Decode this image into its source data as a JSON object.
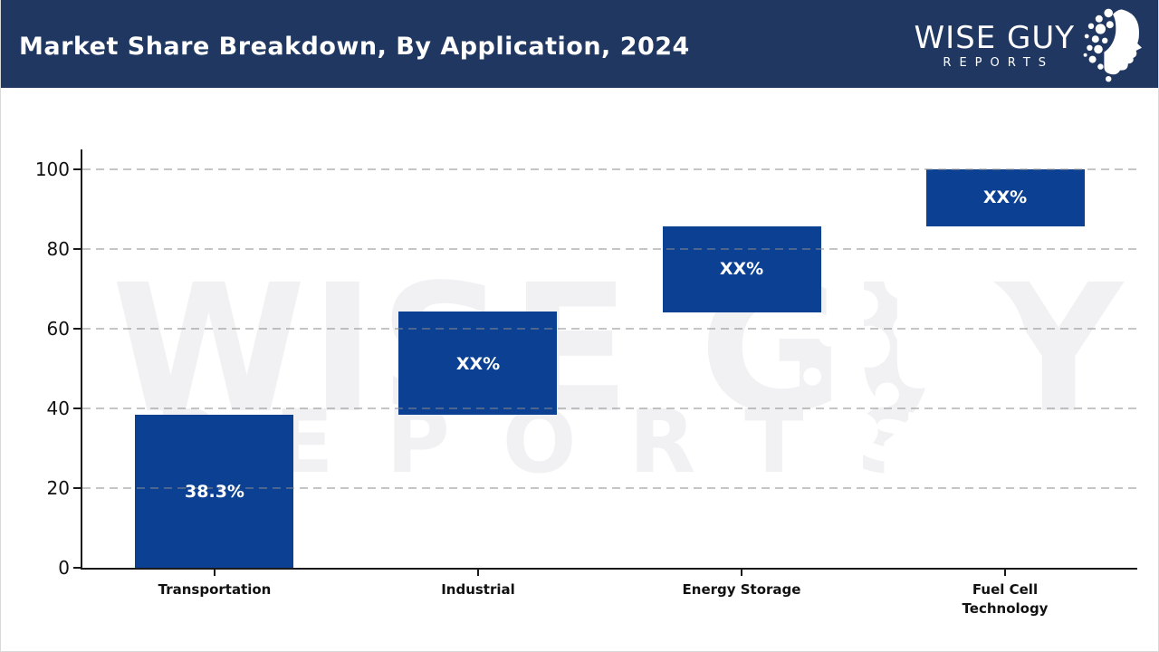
{
  "header": {
    "title": "Market Share Breakdown, By Application, 2024",
    "background_color": "#1f3761",
    "logo": {
      "line1": "WISE GUY",
      "line2": "REPORTS"
    }
  },
  "watermark": {
    "line1": "WISE GUY",
    "line2": "REPORTS"
  },
  "chart_data": {
    "type": "bar",
    "subtype": "waterfall",
    "title": "Market Share Breakdown, By Application, 2024",
    "categories": [
      "Transportation",
      "Industrial",
      "Energy Storage",
      "Fuel Cell Technology"
    ],
    "segments": [
      {
        "category": "Transportation",
        "start": 0,
        "end": 38.3,
        "label": "38.3%"
      },
      {
        "category": "Industrial",
        "start": 38.3,
        "end": 64.1,
        "label": "XX%"
      },
      {
        "category": "Energy Storage",
        "start": 64.1,
        "end": 85.7,
        "label": "XX%"
      },
      {
        "category": "Fuel Cell Technology",
        "start": 85.7,
        "end": 100,
        "label": "XX%"
      }
    ],
    "ylim": [
      0,
      100
    ],
    "yticks": [
      0,
      20,
      40,
      60,
      80,
      100
    ],
    "xlabel": "",
    "ylabel": "",
    "legend": null,
    "grid": {
      "axis": "y",
      "style": "dashed",
      "drawn_over_bars": true
    },
    "bar_color": "#0b4093",
    "bar_label_color": "#ffffff",
    "axis_color": "#1a1a1a"
  }
}
